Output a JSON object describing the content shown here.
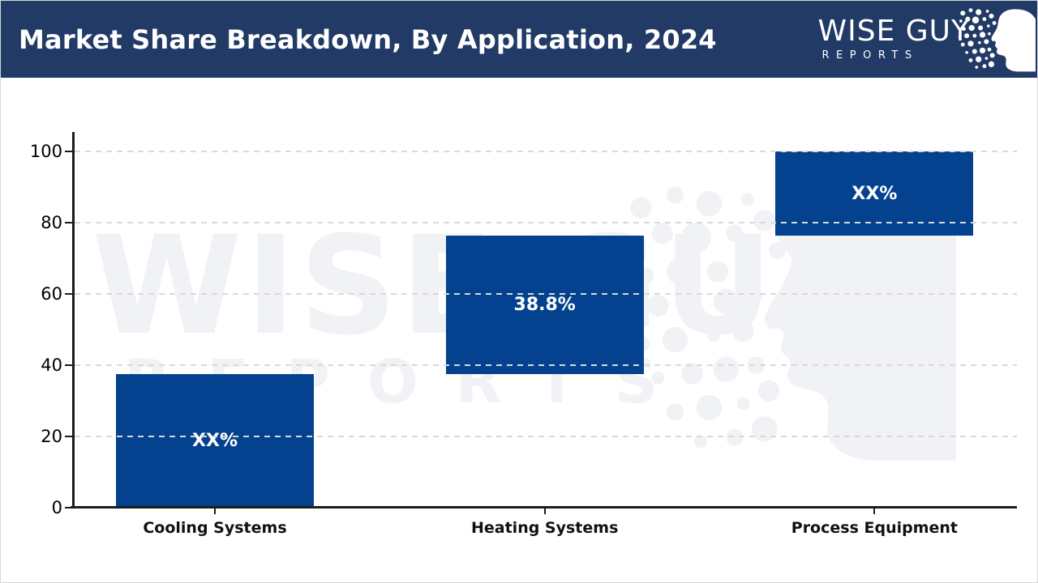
{
  "header": {
    "title": "Market Share Breakdown, By Application, 2024",
    "brand": {
      "name": "WISE GUY",
      "subtitle": "REPORTS"
    }
  },
  "watermark": {
    "line1": "WISE GUY",
    "line2": "REPORTS"
  },
  "colors": {
    "header_bg": "#213a66",
    "bar": "#04428f",
    "grid": "#d9d9d9",
    "axis": "#1c1c1c",
    "bar_label": "#ffffff",
    "watermark": "#f1f2f5"
  },
  "chart_data": {
    "type": "bar",
    "subtype": "floating-segment waterfall (cumulative market share)",
    "title": "Market Share Breakdown, By Application, 2024",
    "categories": [
      "Cooling Systems",
      "Heating Systems",
      "Process Equipment"
    ],
    "segments": [
      {
        "category": "Cooling Systems",
        "from": 0,
        "to": 37.5,
        "label": "XX%"
      },
      {
        "category": "Heating Systems",
        "from": 37.5,
        "to": 76.3,
        "label": "38.8%"
      },
      {
        "category": "Process Equipment",
        "from": 76.3,
        "to": 100,
        "label": "XX%"
      }
    ],
    "ylim": [
      0,
      100
    ],
    "yticks": [
      0,
      20,
      40,
      60,
      80,
      100
    ],
    "xlabel": "",
    "ylabel": "",
    "grid": "horizontal dashed",
    "legend": "none",
    "bar_color": "#04428f"
  }
}
